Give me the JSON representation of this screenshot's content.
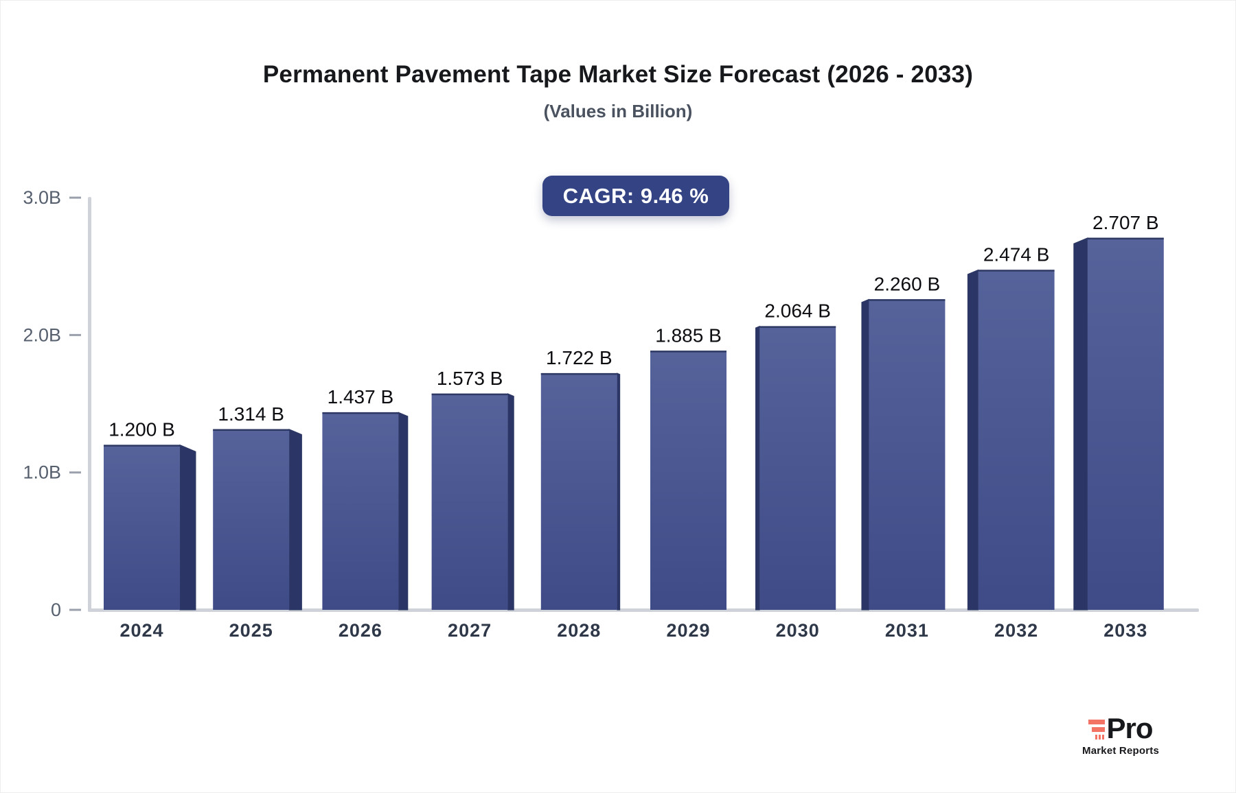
{
  "header": {
    "title": "Permanent Pavement Tape Market Size Forecast (2026 - 2033)",
    "subtitle": "(Values in Billion)"
  },
  "badge": {
    "label": "CAGR: 9.46 %",
    "background_color": "#344383",
    "text_color": "#ffffff"
  },
  "chart_data": {
    "type": "bar",
    "title": "Permanent Pavement Tape Market Size Forecast (2026 - 2033)",
    "subtitle": "(Values in Billion)",
    "unit": "Billion",
    "categories": [
      "2024",
      "2025",
      "2026",
      "2027",
      "2028",
      "2029",
      "2030",
      "2031",
      "2032",
      "2033"
    ],
    "values": [
      1.2,
      1.314,
      1.437,
      1.573,
      1.722,
      1.885,
      2.064,
      2.26,
      2.474,
      2.707
    ],
    "value_labels": [
      "1.200 B",
      "1.314 B",
      "1.437 B",
      "1.573 B",
      "1.722 B",
      "1.885 B",
      "2.064 B",
      "2.260 B",
      "2.474 B",
      "2.707 B"
    ],
    "y_ticks": [
      {
        "value": 0,
        "label": "0"
      },
      {
        "value": 1,
        "label": "1.0B"
      },
      {
        "value": 2,
        "label": "2.0B"
      },
      {
        "value": 3,
        "label": "3.0B"
      }
    ],
    "ylim": [
      0,
      3
    ],
    "xlabel": "",
    "ylabel": "",
    "grid": false,
    "legend": false,
    "style": "3d-perspective-bars",
    "colors": {
      "bar_face_top": "#56629a",
      "bar_face_bottom": "#3f4b87",
      "bar_side": "#2b3666",
      "bar_top_edge": "#2e3963",
      "axis_line": "#cfd3d9",
      "tick_dash": "#9aa1ac",
      "tick_label": "#565f6e",
      "value_label": "#0c0d10",
      "category_label": "#2e3849"
    }
  },
  "logo": {
    "word": "Pro",
    "subtitle": "Market Reports",
    "accent_color": "#f37464",
    "text_color": "#17181b"
  }
}
